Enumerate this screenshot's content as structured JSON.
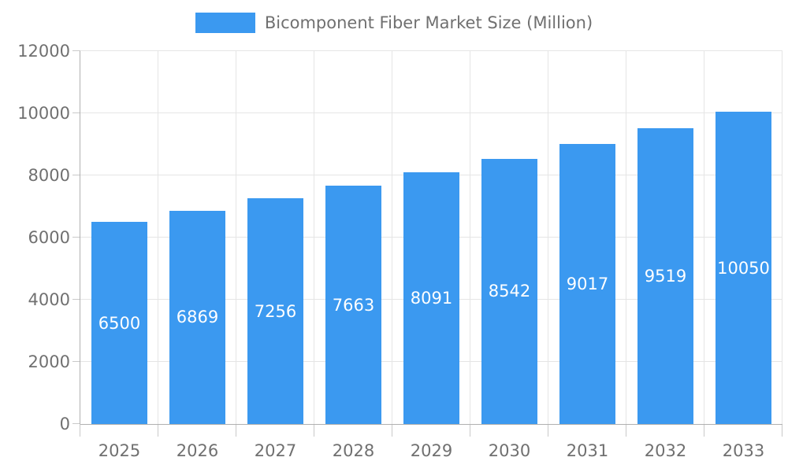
{
  "legend": {
    "label": "Bicomponent Fiber Market Size (Million)"
  },
  "chart_data": {
    "type": "bar",
    "title": "Bicomponent Fiber Market Size (Million)",
    "series_name": "Bicomponent Fiber Market Size (Million)",
    "categories": [
      "2025",
      "2026",
      "2027",
      "2028",
      "2029",
      "2030",
      "2031",
      "2032",
      "2033"
    ],
    "values": [
      6500,
      6869,
      7256,
      7663,
      8091,
      8542,
      9017,
      9519,
      10050
    ],
    "value_labels": [
      "6500",
      "6869",
      "7256",
      "7663",
      "8091",
      "8542",
      "9017",
      "9519",
      "10050"
    ],
    "xlabel": "",
    "ylabel": "",
    "ylim": [
      0,
      12000
    ],
    "y_ticks": [
      0,
      2000,
      4000,
      6000,
      8000,
      10000,
      12000
    ],
    "grid": true,
    "legend_position": "top-center",
    "colors": {
      "bar": "#3B99F0",
      "value_text": "#FFFFFF",
      "axis_text": "#707070",
      "gridline": "#E5E5E5",
      "axis_line": "#B0B0B0",
      "tick": "#C9C9C9",
      "background": "#FFFFFF"
    }
  }
}
